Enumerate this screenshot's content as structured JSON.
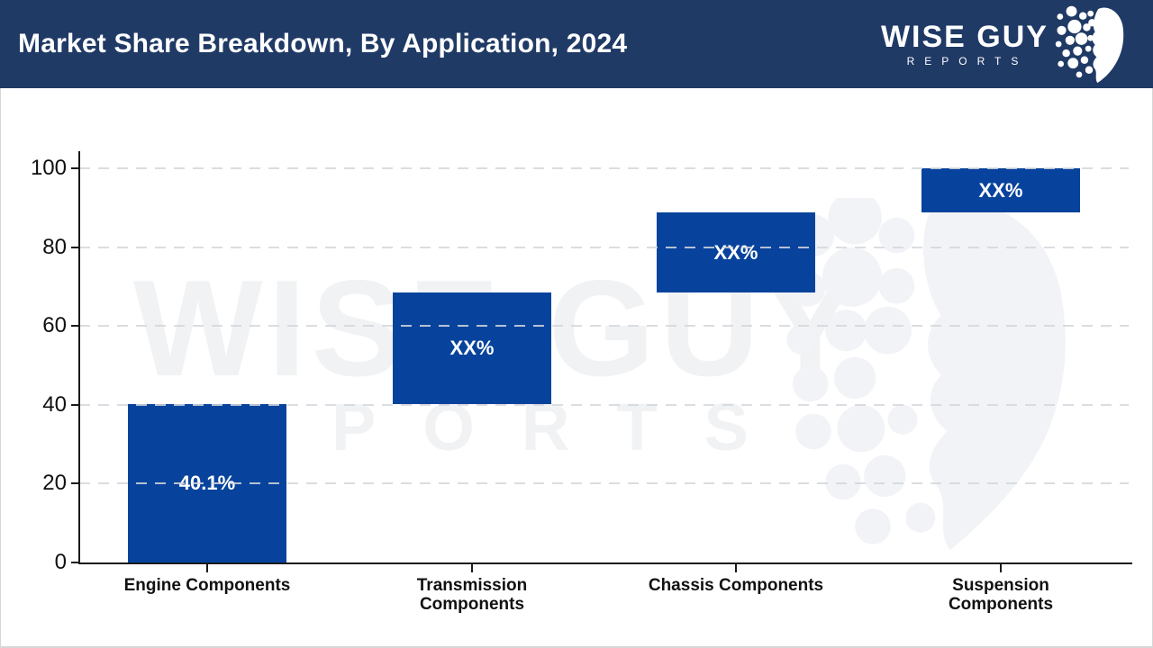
{
  "header": {
    "title": "Market Share Breakdown, By Application, 2024",
    "brand": {
      "line1": "WISE GUY",
      "line2": "REPORTS"
    },
    "bg_color": "#203a66"
  },
  "watermark": {
    "line1": "WISE GUY",
    "line2": "PORTS"
  },
  "chart_data": {
    "type": "bar",
    "subtype": "waterfall-floating-bars",
    "title": "Market Share Breakdown, By Application, 2024",
    "categories": [
      "Engine Components",
      "Transmission Components",
      "Chassis Components",
      "Suspension Components"
    ],
    "category_label_lines": [
      [
        "Engine Components"
      ],
      [
        "Transmission",
        "Components"
      ],
      [
        "Chassis Components"
      ],
      [
        "Suspension",
        "Components"
      ]
    ],
    "segments": [
      {
        "category": "Engine Components",
        "start": 0,
        "end": 40.1,
        "label": "40.1%"
      },
      {
        "category": "Transmission Components",
        "start": 40.1,
        "end": 68.5,
        "label": "XX%"
      },
      {
        "category": "Chassis Components",
        "start": 68.5,
        "end": 88.8,
        "label": "XX%"
      },
      {
        "category": "Suspension Components",
        "start": 88.8,
        "end": 100,
        "label": "XX%"
      }
    ],
    "xlabel": "",
    "ylabel": "",
    "ylim": [
      0,
      100
    ],
    "yticks": [
      0,
      20,
      40,
      60,
      80,
      100
    ],
    "grid": "horizontal-dashed",
    "legend": "none",
    "bar_color": "#07439d",
    "bar_label_color": "#ffffff"
  }
}
